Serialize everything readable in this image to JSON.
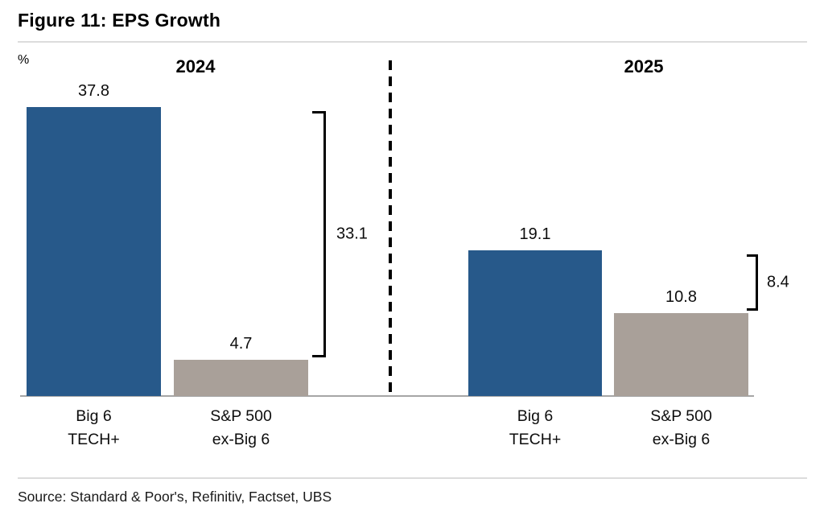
{
  "figure": {
    "title": "Figure 11: EPS Growth",
    "unit_label": "%",
    "source": "Source: Standard & Poor's, Refinitiv, Factset, UBS"
  },
  "colors": {
    "big6_bar": "#27598a",
    "sp500_bar": "#a9a099",
    "axis": "#a6a6a6",
    "divider_rule": "#dcdcdc",
    "bracket": "#000000",
    "dashed_line": "#000000"
  },
  "chart_data": {
    "type": "bar",
    "title": "Figure 11: EPS Growth",
    "ylabel": "%",
    "ylim": [
      0,
      40
    ],
    "grid": false,
    "value_labels": true,
    "categories": [
      {
        "line1": "Big 6",
        "line2": "TECH+"
      },
      {
        "line1": "S&P 500",
        "line2": "ex-Big 6"
      }
    ],
    "series_note": "Each panel shows EPS growth (%) for Big 6 TECH+ (blue) vs S&P 500 ex-Big 6 (gray); bracket shows the difference",
    "panels": [
      {
        "year": "2024",
        "values": [
          37.8,
          4.7
        ],
        "difference": 33.1
      },
      {
        "year": "2025",
        "values": [
          19.1,
          10.8
        ],
        "difference": 8.4
      }
    ]
  }
}
